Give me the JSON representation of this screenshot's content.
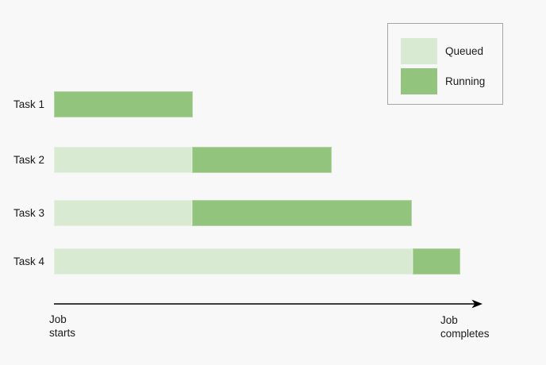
{
  "colors": {
    "background": "#f8f8f8",
    "queued": "#d9ead3",
    "running": "#93c47d",
    "axis": "#000000",
    "legend_border": "#a6a6a6",
    "text": "#1a1a1a"
  },
  "legend": {
    "items": [
      {
        "id": "queued",
        "label": "Queued"
      },
      {
        "id": "running",
        "label": "Running"
      }
    ]
  },
  "axis": {
    "start_label": "Job\nstarts",
    "end_label": "Job\ncompletes"
  },
  "chart_data": {
    "type": "gantt",
    "categories": [
      "Task 1",
      "Task 2",
      "Task 3",
      "Task 4"
    ],
    "legend": [
      "Queued",
      "Running"
    ],
    "x_axis": {
      "start_label": "Job starts",
      "end_label": "Job completes",
      "range": [
        0,
        100
      ],
      "unit": "percent of job duration",
      "grid": false,
      "ticks": []
    },
    "tasks": [
      {
        "label": "Task 1",
        "segments": [
          {
            "state": "running",
            "start": 0,
            "end": 32.5
          }
        ]
      },
      {
        "label": "Task 2",
        "segments": [
          {
            "state": "queued",
            "start": 0,
            "end": 32.3
          },
          {
            "state": "running",
            "start": 32.3,
            "end": 64.9
          }
        ]
      },
      {
        "label": "Task 3",
        "segments": [
          {
            "state": "queued",
            "start": 0,
            "end": 32.3
          },
          {
            "state": "running",
            "start": 32.3,
            "end": 83.7
          }
        ]
      },
      {
        "label": "Task 4",
        "segments": [
          {
            "state": "queued",
            "start": 0,
            "end": 83.9
          },
          {
            "state": "running",
            "start": 83.9,
            "end": 95.0
          }
        ]
      }
    ]
  }
}
